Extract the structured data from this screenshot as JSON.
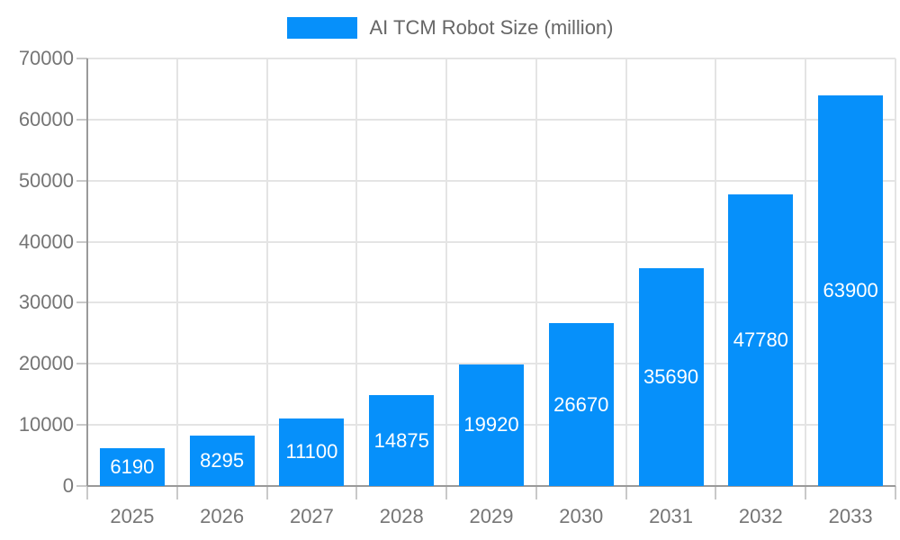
{
  "legend": {
    "label": "AI TCM Robot Size (million)"
  },
  "chart_data": {
    "type": "bar",
    "title": "AI TCM Robot Size (million)",
    "categories": [
      "2025",
      "2026",
      "2027",
      "2028",
      "2029",
      "2030",
      "2031",
      "2032",
      "2033"
    ],
    "values": [
      6190,
      8295,
      11100,
      14875,
      19920,
      26670,
      35690,
      47780,
      63900
    ],
    "xlabel": "",
    "ylabel": "",
    "ylim": [
      0,
      70000
    ],
    "yticks": [
      0,
      10000,
      20000,
      30000,
      40000,
      50000,
      60000,
      70000
    ],
    "grid": true,
    "legend_position": "top",
    "value_labels": "inside-center"
  },
  "colors": {
    "bar": "#0690FA",
    "value_label": "#FFFFFF",
    "grid": "#E4E4E4",
    "axis": "#9A9A9A",
    "tick": "#C9C9C9",
    "axis_label": "#757575",
    "legend_text": "#666666",
    "background": "#FFFFFF"
  }
}
